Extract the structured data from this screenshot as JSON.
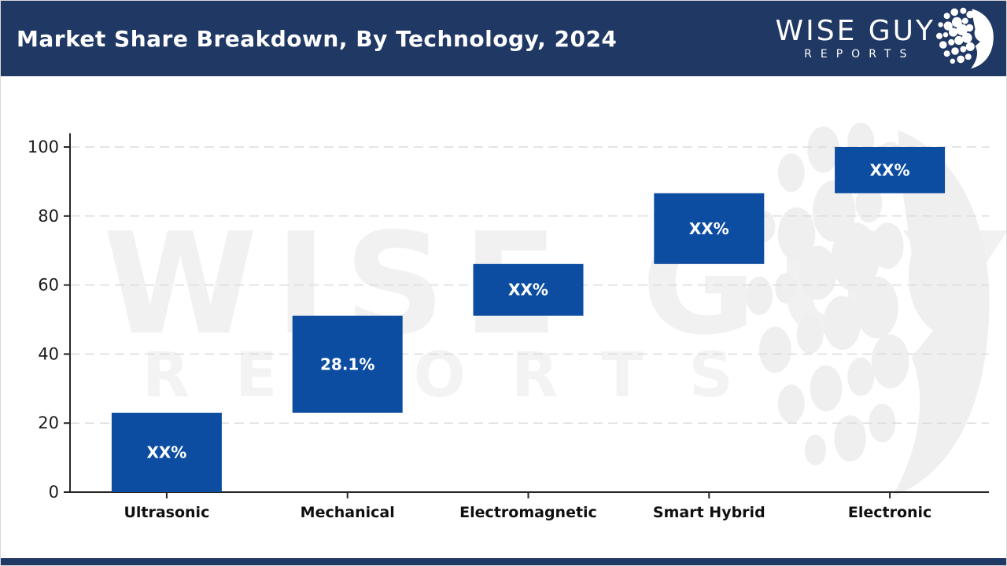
{
  "header": {
    "title": "Market Share Breakdown, By Technology, 2024",
    "logo": {
      "line1": "WISE GUY",
      "line2": "REPORTS"
    }
  },
  "watermark": {
    "line1": "WISE GUY",
    "line2": "REPORTS"
  },
  "theme": {
    "header_bg": "#203864",
    "footer_bg": "#203864",
    "bar_color": "#0d4da1",
    "bar_label_color": "#ffffff",
    "axis_color": "#262626",
    "grid_color": "#dcdcdc",
    "watermark_color": "#efefef"
  },
  "chart_data": {
    "type": "bar",
    "variant": "waterfall-floating-bars",
    "title": "Market Share Breakdown, By Technology, 2024",
    "xlabel": "",
    "ylabel": "",
    "categories": [
      "Ultrasonic",
      "Mechanical",
      "Electromagnetic",
      "Smart Hybrid",
      "Electronic"
    ],
    "segments": [
      {
        "category": "Ultrasonic",
        "start": 0.0,
        "end": 23.0,
        "height": 23.0,
        "label": "XX%"
      },
      {
        "category": "Mechanical",
        "start": 23.0,
        "end": 51.1,
        "height": 28.1,
        "label": "28.1%"
      },
      {
        "category": "Electromagnetic",
        "start": 51.1,
        "end": 66.1,
        "height": 15.0,
        "label": "XX%"
      },
      {
        "category": "Smart Hybrid",
        "start": 66.1,
        "end": 86.6,
        "height": 20.5,
        "label": "XX%"
      },
      {
        "category": "Electronic",
        "start": 86.6,
        "end": 100.0,
        "height": 13.4,
        "label": "XX%"
      }
    ],
    "yticks": [
      0,
      20,
      40,
      60,
      80,
      100
    ],
    "ylim": [
      0,
      104
    ],
    "grid": "horizontal-dashed",
    "legend": "none"
  }
}
